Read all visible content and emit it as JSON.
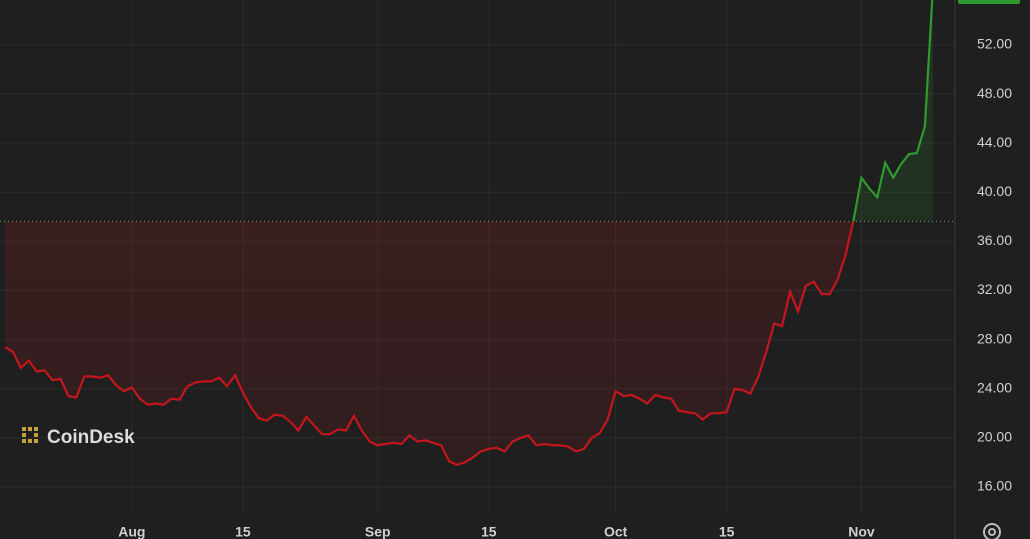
{
  "chart_data": {
    "type": "line",
    "watermark": "CoinDesk",
    "categories": [
      null,
      null,
      null,
      null,
      null,
      null,
      null,
      null,
      null,
      null,
      null,
      null,
      null,
      null,
      null,
      null,
      "Aug",
      null,
      null,
      null,
      null,
      null,
      null,
      null,
      null,
      null,
      null,
      null,
      null,
      null,
      "15",
      null,
      null,
      null,
      null,
      null,
      null,
      null,
      null,
      null,
      null,
      null,
      null,
      null,
      null,
      null,
      null,
      "Sep",
      null,
      null,
      null,
      null,
      null,
      null,
      null,
      null,
      null,
      null,
      null,
      null,
      null,
      "15",
      null,
      null,
      null,
      null,
      null,
      null,
      null,
      null,
      null,
      null,
      null,
      null,
      null,
      null,
      null,
      "Oct",
      null,
      null,
      null,
      null,
      null,
      null,
      null,
      null,
      null,
      null,
      null,
      null,
      null,
      "15",
      null,
      null,
      null,
      null,
      null,
      null,
      null,
      null,
      null,
      null,
      null,
      null,
      null,
      null,
      null,
      null,
      "Nov",
      null,
      null,
      null,
      null,
      null,
      null,
      null,
      null,
      null
    ],
    "series": [
      {
        "values": [
          27.4,
          27.0,
          25.7,
          26.3,
          25.4,
          25.5,
          24.7,
          24.8,
          23.4,
          23.3,
          25.0,
          25.0,
          24.9,
          25.1,
          24.3,
          23.8,
          24.1,
          23.2,
          22.7,
          22.8,
          22.7,
          23.2,
          23.1,
          24.2,
          24.5,
          24.6,
          24.6,
          24.9,
          24.2,
          25.1,
          23.7,
          22.5,
          21.6,
          21.4,
          21.9,
          21.8,
          21.3,
          20.6,
          21.7,
          21.0,
          20.3,
          20.3,
          20.7,
          20.6,
          21.8,
          20.6,
          19.7,
          19.4,
          19.5,
          19.6,
          19.5,
          20.2,
          19.7,
          19.8,
          19.6,
          19.4,
          18.1,
          17.8,
          18.0,
          18.4,
          18.9,
          19.1,
          19.2,
          18.9,
          19.7,
          20.0,
          20.2,
          19.4,
          19.5,
          19.4,
          19.4,
          19.3,
          18.9,
          19.1,
          20.0,
          20.4,
          21.5,
          23.8,
          23.4,
          23.5,
          23.2,
          22.8,
          23.5,
          23.3,
          23.2,
          22.2,
          22.1,
          22.0,
          21.5,
          22.0,
          22.0,
          22.1,
          24.0,
          23.9,
          23.6,
          25.0,
          27.0,
          29.3,
          29.1,
          31.9,
          30.3,
          32.4,
          32.7,
          31.7,
          31.7,
          32.9,
          34.9,
          37.7,
          41.2,
          40.3,
          39.6,
          42.4,
          41.2,
          42.3,
          43.1,
          43.2,
          45.4,
          56.5
        ]
      }
    ],
    "reference_value": 37.63,
    "colors": {
      "up": "#2f9a2f",
      "down": "#c4161c"
    },
    "ylim": [
      13.72,
      55.66
    ],
    "yticks": [
      {
        "value": 16,
        "label": "16.00"
      },
      {
        "value": 20,
        "label": "20.00"
      },
      {
        "value": 24,
        "label": "24.00"
      },
      {
        "value": 28,
        "label": "28.00"
      },
      {
        "value": 32,
        "label": "32.00"
      },
      {
        "value": 36,
        "label": "36.00"
      },
      {
        "value": 40,
        "label": "40.00"
      },
      {
        "value": 44,
        "label": "44.00"
      },
      {
        "value": 48,
        "label": "48.00"
      },
      {
        "value": 52,
        "label": "52.00"
      }
    ],
    "grid": true
  }
}
